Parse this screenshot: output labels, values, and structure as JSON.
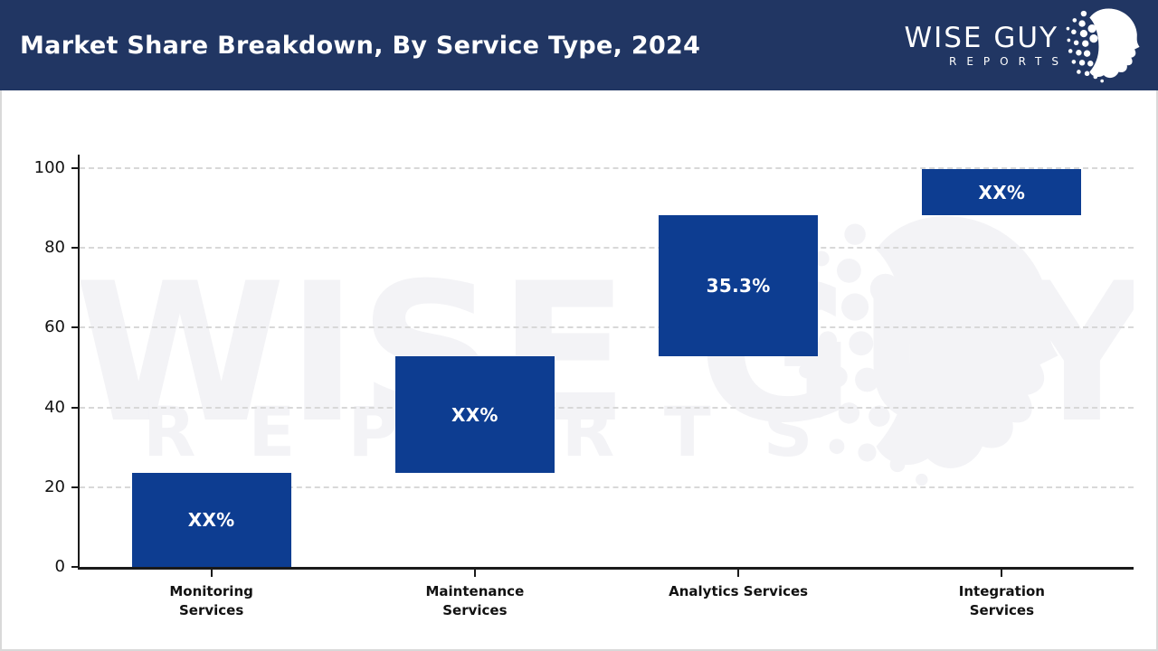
{
  "header": {
    "title": "Market Share Breakdown, By Service Type, 2024",
    "logo": {
      "name": "Wise Guy Reports",
      "line1": "WISE GUY",
      "line2": "REPORTS"
    }
  },
  "watermark": {
    "line1": "WISE GUY",
    "line2": "REPORTS"
  },
  "colors": {
    "header_bg": "#213663",
    "bar": "#0d3d91",
    "bar_label": "#ffffff",
    "gridline": "#d8d8d8",
    "axis": "#1a1a1a",
    "watermark": "#f3f3f6",
    "canvas_border": "#d9d9d9"
  },
  "chart_data": {
    "type": "bar",
    "subtype": "waterfall (stacked market-share breakdown, floating segments summing to ~100%)",
    "title": "Market Share Breakdown, By Service Type, 2024",
    "categories": [
      "Monitoring Services",
      "Maintenance Services",
      "Analytics Services",
      "Integration Services"
    ],
    "category_lines": [
      [
        "Monitoring",
        "Services"
      ],
      [
        "Maintenance",
        "Services"
      ],
      [
        "Analytics Services"
      ],
      [
        "Integration",
        "Services"
      ]
    ],
    "segments": [
      {
        "category": "Monitoring Services",
        "start": 0,
        "end": 23.5,
        "value": 23.5,
        "label": "XX%"
      },
      {
        "category": "Maintenance Services",
        "start": 23.5,
        "end": 52.8,
        "value": 29.3,
        "label": "XX%"
      },
      {
        "category": "Analytics Services",
        "start": 52.8,
        "end": 88.1,
        "value": 35.3,
        "label": "35.3%"
      },
      {
        "category": "Integration Services",
        "start": 88.1,
        "end": 99.8,
        "value": 11.7,
        "label": "XX%"
      }
    ],
    "xlabel": "",
    "ylabel": "",
    "yticks": [
      0,
      20,
      40,
      60,
      80,
      100
    ],
    "ylim": [
      0,
      103.5
    ],
    "grid": "horizontal dashed",
    "legend": "none",
    "bar_color": "#0d3d91"
  }
}
